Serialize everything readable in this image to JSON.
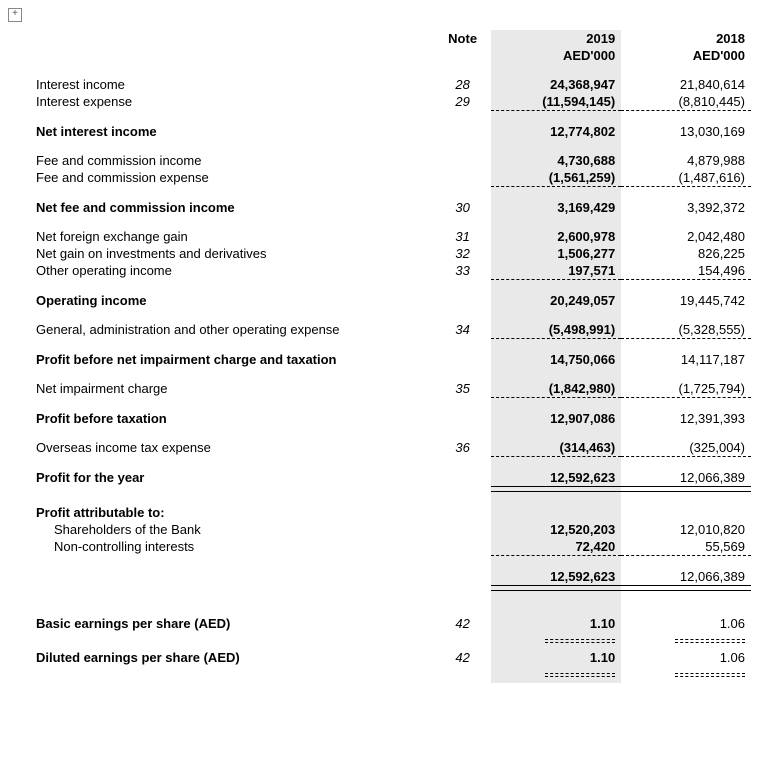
{
  "header": {
    "note": "Note",
    "y2019a": "2019",
    "y2019b": "AED'000",
    "y2018a": "2018",
    "y2018b": "AED'000"
  },
  "rows": {
    "int_income": {
      "label": "Interest income",
      "note": "28",
      "v19": "24,368,947",
      "v18": "21,840,614"
    },
    "int_expense": {
      "label": "Interest expense",
      "note": "29",
      "v19": "(11,594,145)",
      "v18": "(8,810,445)"
    },
    "net_int": {
      "label": "Net interest income",
      "v19": "12,774,802",
      "v18": "13,030,169"
    },
    "fee_inc": {
      "label": "Fee and commission income",
      "v19": "4,730,688",
      "v18": "4,879,988"
    },
    "fee_exp": {
      "label": "Fee and commission expense",
      "v19": "(1,561,259)",
      "v18": "(1,487,616)"
    },
    "net_fee": {
      "label": "Net fee and commission income",
      "note": "30",
      "v19": "3,169,429",
      "v18": "3,392,372"
    },
    "fx_gain": {
      "label": "Net foreign exchange gain",
      "note": "31",
      "v19": "2,600,978",
      "v18": "2,042,480"
    },
    "inv_gain": {
      "label": "Net gain on investments and derivatives",
      "note": "32",
      "v19": "1,506,277",
      "v18": "826,225"
    },
    "other_inc": {
      "label": "Other operating income",
      "note": "33",
      "v19": "197,571",
      "v18": "154,496"
    },
    "op_income": {
      "label": "Operating income",
      "v19": "20,249,057",
      "v18": "19,445,742"
    },
    "ga_exp": {
      "label": "General, administration and other operating expense",
      "note": "34",
      "v19": "(5,498,991)",
      "v18": "(5,328,555)"
    },
    "pbt_imp": {
      "label": "Profit before net impairment charge and taxation",
      "v19": "14,750,066",
      "v18": "14,117,187"
    },
    "impairment": {
      "label": "Net impairment charge",
      "note": "35",
      "v19": "(1,842,980)",
      "v18": "(1,725,794)"
    },
    "pbt": {
      "label": "Profit before taxation",
      "v19": "12,907,086",
      "v18": "12,391,393"
    },
    "tax": {
      "label": "Overseas income tax expense",
      "note": "36",
      "v19": "(314,463)",
      "v18": "(325,004)"
    },
    "profit_year": {
      "label": "Profit for the year",
      "v19": "12,592,623",
      "v18": "12,066,389"
    },
    "attrib_hdr": {
      "label": "Profit attributable to:"
    },
    "shareholders": {
      "label": "Shareholders of the Bank",
      "v19": "12,520,203",
      "v18": "12,010,820"
    },
    "nci": {
      "label": "Non-controlling interests",
      "v19": "72,420",
      "v18": "55,569"
    },
    "attrib_total": {
      "v19": "12,592,623",
      "v18": "12,066,389"
    },
    "basic_eps": {
      "label": "Basic earnings per share (AED)",
      "note": "42",
      "v19": "1.10",
      "v18": "1.06"
    },
    "diluted_eps": {
      "label": "Diluted earnings per share (AED)",
      "note": "42",
      "v19": "1.10",
      "v18": "1.06"
    }
  }
}
